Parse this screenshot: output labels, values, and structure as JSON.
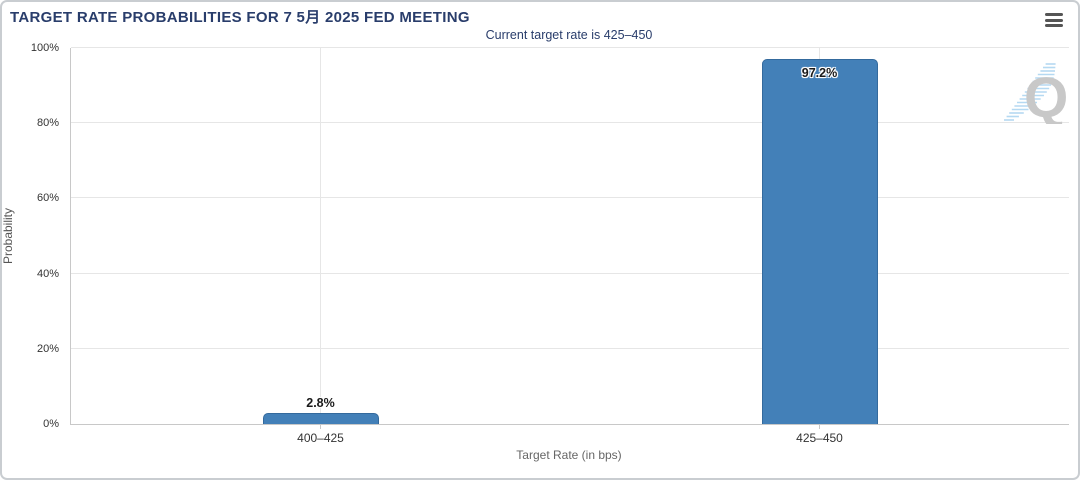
{
  "header": {
    "title": "TARGET RATE PROBABILITIES FOR 7 5月 2025 FED MEETING",
    "subtitle": "Current target rate is 425–450"
  },
  "watermark": {
    "letter": "Q"
  },
  "colors": {
    "title_navy": "#293d6b",
    "bar_fill": "#4380b8",
    "bar_border": "#346a9d",
    "gridline": "#e6e6e6",
    "axis_line": "#c8c8c8",
    "tick_label": "#333333",
    "axis_title": "#666666",
    "watermark_gray": "#c8c8c8",
    "watermark_blue": "#b5d9f2"
  },
  "chart_data": {
    "type": "bar",
    "title": "TARGET RATE PROBABILITIES FOR 7 5月 2025 FED MEETING",
    "subtitle": "Current target rate is 425–450",
    "categories": [
      "400–425",
      "425–450"
    ],
    "values": [
      2.8,
      97.2
    ],
    "value_labels": [
      "2.8%",
      "97.2%"
    ],
    "xlabel": "Target Rate (in bps)",
    "ylabel": "Probability",
    "ylim": [
      0,
      100
    ],
    "yticks": [
      0,
      20,
      40,
      60,
      80,
      100
    ],
    "ytick_labels": [
      "0%",
      "20%",
      "40%",
      "60%",
      "80%",
      "100%"
    ],
    "grid": true,
    "legend": "none"
  }
}
